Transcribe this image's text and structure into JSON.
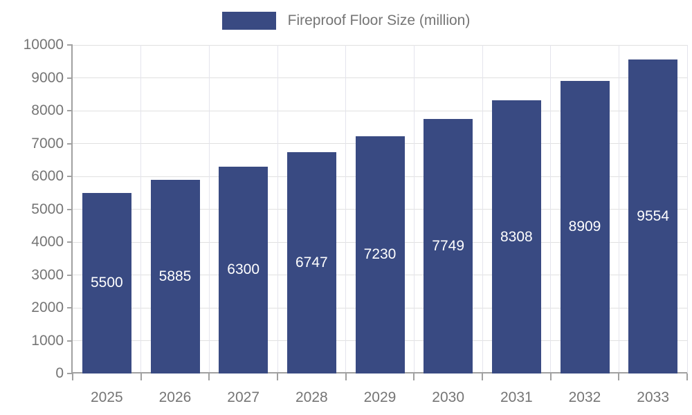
{
  "legend": {
    "label": "Fireproof Floor Size (million)"
  },
  "colors": {
    "bar": "#394A82",
    "grid_horizontal": "#e0e0e0",
    "grid_vertical": "#e4e4ec",
    "axis": "#a0a0a0",
    "tick_text": "#757575",
    "legend_text": "#757575",
    "bar_label_text": "#ffffff",
    "background": "#ffffff"
  },
  "chart_data": {
    "type": "bar",
    "title": "Fireproof Floor Size (million)",
    "categories": [
      "2025",
      "2026",
      "2027",
      "2028",
      "2029",
      "2030",
      "2031",
      "2032",
      "2033"
    ],
    "values": [
      5500,
      5885,
      6300,
      6747,
      7230,
      7749,
      8308,
      8909,
      9554
    ],
    "series_name": "Fireproof Floor Size (million)",
    "xlabel": "",
    "ylabel": "",
    "ylim": [
      0,
      10000
    ],
    "y_ticks": [
      0,
      1000,
      2000,
      3000,
      4000,
      5000,
      6000,
      7000,
      8000,
      9000,
      10000
    ],
    "grid": true,
    "legend_position": "top-center",
    "value_labels": "inside-center"
  }
}
